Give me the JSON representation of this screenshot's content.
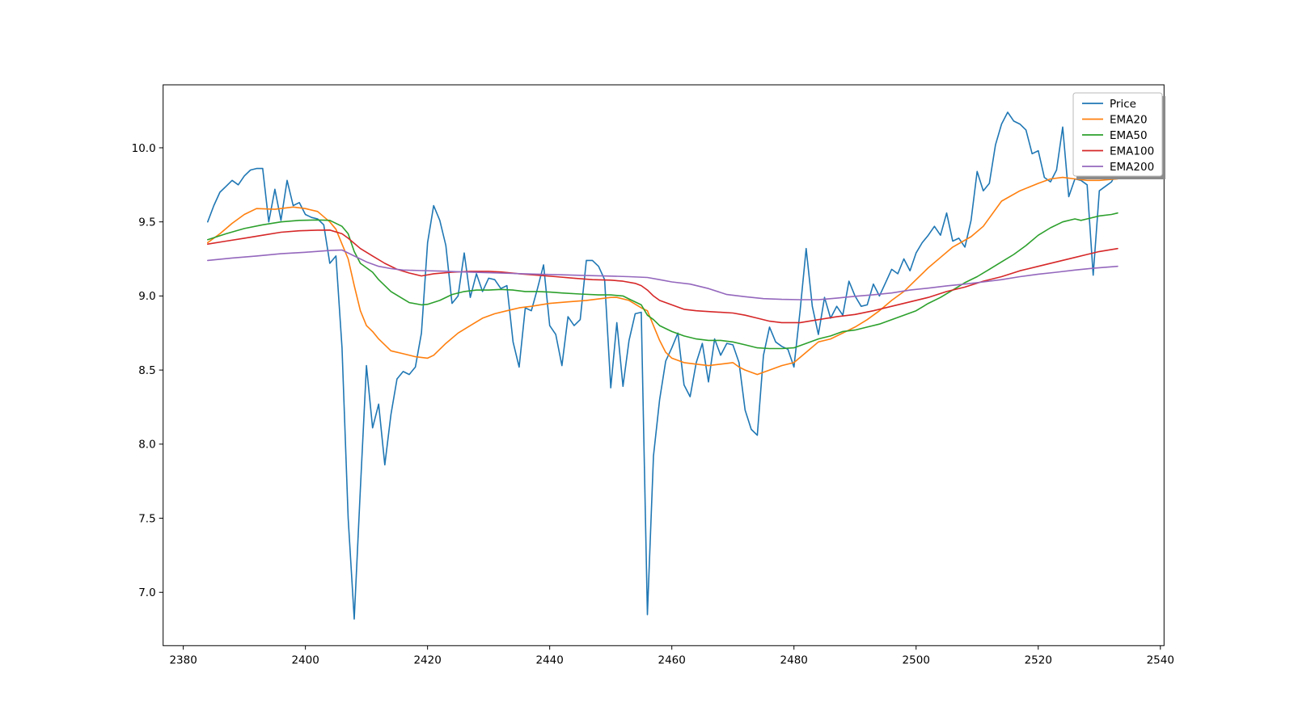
{
  "figure": {
    "background": "#ffffff",
    "axes_edge_color": "#000000",
    "tick_color": "#000000"
  },
  "chart_data": {
    "type": "line",
    "title": "",
    "xlabel": "",
    "ylabel": "",
    "grid": false,
    "xlim": [
      2376.7,
      2540.6
    ],
    "ylim": [
      6.64,
      10.425
    ],
    "xticks": [
      2380,
      2400,
      2420,
      2440,
      2460,
      2480,
      2500,
      2520,
      2540
    ],
    "yticks": [
      7.0,
      7.5,
      8.0,
      8.5,
      9.0,
      9.5,
      10.0
    ],
    "legend": {
      "position": "upper right",
      "entries": [
        "Price",
        "EMA20",
        "EMA50",
        "EMA100",
        "EMA200"
      ]
    },
    "series": [
      {
        "name": "Price",
        "color": "#1f77b4",
        "x_start": 2384,
        "x_step": 1,
        "values": [
          9.5,
          9.61,
          9.7,
          9.74,
          9.78,
          9.75,
          9.81,
          9.85,
          9.86,
          9.86,
          9.5,
          9.72,
          9.51,
          9.78,
          9.61,
          9.63,
          9.55,
          9.53,
          9.52,
          9.48,
          9.22,
          9.27,
          8.65,
          7.5,
          6.82,
          7.7,
          8.53,
          8.11,
          8.27,
          7.86,
          8.2,
          8.44,
          8.49,
          8.47,
          8.52,
          8.75,
          9.36,
          9.61,
          9.51,
          9.34,
          8.95,
          9.0,
          9.29,
          8.99,
          9.15,
          9.03,
          9.12,
          9.11,
          9.05,
          9.07,
          8.69,
          8.52,
          8.92,
          8.9,
          9.05,
          9.21,
          8.8,
          8.74,
          8.53,
          8.86,
          8.8,
          8.84,
          9.24,
          9.24,
          9.2,
          9.11,
          8.38,
          8.82,
          8.39,
          8.7,
          8.88,
          8.89,
          6.85,
          7.92,
          8.3,
          8.56,
          8.65,
          8.75,
          8.4,
          8.32,
          8.55,
          8.68,
          8.42,
          8.71,
          8.6,
          8.68,
          8.67,
          8.55,
          8.23,
          8.1,
          8.06,
          8.6,
          8.79,
          8.69,
          8.66,
          8.64,
          8.52,
          8.9,
          9.32,
          8.93,
          8.74,
          8.99,
          8.85,
          8.93,
          8.87,
          9.1,
          9.0,
          8.93,
          8.94,
          9.08,
          9.0,
          9.09,
          9.18,
          9.15,
          9.25,
          9.17,
          9.29,
          9.36,
          9.41,
          9.47,
          9.41,
          9.56,
          9.37,
          9.39,
          9.33,
          9.51,
          9.84,
          9.71,
          9.76,
          10.02,
          10.16,
          10.24,
          10.18,
          10.16,
          10.12,
          9.96,
          9.98,
          9.8,
          9.77,
          9.85,
          10.14,
          9.67,
          9.79,
          9.78,
          9.75,
          9.14,
          9.71,
          9.74,
          9.77,
          9.85
        ]
      },
      {
        "name": "EMA20",
        "color": "#ff7f0e",
        "x": [
          2384,
          2386,
          2388,
          2390,
          2392,
          2395,
          2398,
          2400,
          2402,
          2404,
          2405,
          2406,
          2407,
          2408,
          2409,
          2410,
          2411,
          2412,
          2414,
          2416,
          2418,
          2420,
          2421,
          2423,
          2425,
          2427,
          2429,
          2431,
          2433,
          2435,
          2437,
          2440,
          2443,
          2446,
          2448,
          2450,
          2451,
          2453,
          2455,
          2456,
          2457,
          2458,
          2459,
          2460,
          2462,
          2464,
          2466,
          2468,
          2470,
          2471,
          2472,
          2474,
          2476,
          2478,
          2480,
          2482,
          2484,
          2486,
          2488,
          2490,
          2492,
          2494,
          2496,
          2498,
          2500,
          2502,
          2504,
          2506,
          2509,
          2511,
          2514,
          2517,
          2520,
          2522,
          2524,
          2526,
          2528,
          2530,
          2533
        ],
        "values": [
          9.36,
          9.42,
          9.49,
          9.55,
          9.59,
          9.585,
          9.6,
          9.59,
          9.57,
          9.5,
          9.45,
          9.35,
          9.25,
          9.07,
          8.9,
          8.8,
          8.76,
          8.71,
          8.63,
          8.61,
          8.59,
          8.58,
          8.6,
          8.68,
          8.75,
          8.8,
          8.85,
          8.88,
          8.9,
          8.92,
          8.93,
          8.95,
          8.96,
          8.97,
          8.98,
          8.99,
          8.99,
          8.97,
          8.92,
          8.9,
          8.8,
          8.7,
          8.62,
          8.58,
          8.55,
          8.54,
          8.53,
          8.54,
          8.55,
          8.52,
          8.5,
          8.47,
          8.5,
          8.53,
          8.55,
          8.62,
          8.69,
          8.71,
          8.75,
          8.79,
          8.84,
          8.9,
          8.97,
          9.03,
          9.11,
          9.19,
          9.26,
          9.33,
          9.4,
          9.47,
          9.64,
          9.71,
          9.76,
          9.79,
          9.8,
          9.79,
          9.78,
          9.78,
          9.79
        ]
      },
      {
        "name": "EMA50",
        "color": "#2ca02c",
        "x": [
          2384,
          2387,
          2390,
          2393,
          2396,
          2399,
          2402,
          2404,
          2406,
          2407,
          2408,
          2409,
          2411,
          2412,
          2414,
          2416,
          2417,
          2419,
          2420,
          2422,
          2424,
          2426,
          2428,
          2430,
          2432,
          2434,
          2436,
          2438,
          2440,
          2442,
          2445,
          2448,
          2450,
          2452,
          2453,
          2455,
          2456,
          2457,
          2458,
          2460,
          2462,
          2464,
          2466,
          2468,
          2470,
          2472,
          2474,
          2476,
          2478,
          2480,
          2482,
          2484,
          2486,
          2488,
          2490,
          2492,
          2494,
          2496,
          2498,
          2500,
          2502,
          2504,
          2506,
          2508,
          2510,
          2512,
          2514,
          2516,
          2518,
          2520,
          2522,
          2524,
          2526,
          2527,
          2528,
          2530,
          2532,
          2533
        ],
        "values": [
          9.38,
          9.42,
          9.455,
          9.48,
          9.5,
          9.51,
          9.513,
          9.51,
          9.47,
          9.42,
          9.3,
          9.22,
          9.16,
          9.11,
          9.03,
          8.98,
          8.955,
          8.94,
          8.944,
          8.97,
          9.01,
          9.03,
          9.04,
          9.04,
          9.044,
          9.04,
          9.03,
          9.03,
          9.026,
          9.02,
          9.013,
          9.007,
          9.007,
          9.0,
          8.98,
          8.94,
          8.87,
          8.84,
          8.8,
          8.76,
          8.73,
          8.71,
          8.7,
          8.7,
          8.69,
          8.67,
          8.65,
          8.645,
          8.645,
          8.65,
          8.68,
          8.71,
          8.73,
          8.76,
          8.77,
          8.79,
          8.81,
          8.84,
          8.87,
          8.9,
          8.95,
          8.99,
          9.04,
          9.09,
          9.13,
          9.18,
          9.23,
          9.28,
          9.34,
          9.41,
          9.46,
          9.5,
          9.52,
          9.51,
          9.52,
          9.54,
          9.55,
          9.56
        ]
      },
      {
        "name": "EMA100",
        "color": "#d62728",
        "x": [
          2384,
          2387,
          2390,
          2393,
          2396,
          2399,
          2402,
          2404,
          2406,
          2407,
          2409,
          2411,
          2413,
          2415,
          2417,
          2419,
          2421,
          2424,
          2427,
          2430,
          2432,
          2435,
          2438,
          2441,
          2444,
          2447,
          2450,
          2452,
          2454,
          2455,
          2456,
          2457,
          2458,
          2460,
          2462,
          2464,
          2466,
          2468,
          2470,
          2472,
          2474,
          2476,
          2478,
          2481,
          2484,
          2487,
          2490,
          2493,
          2496,
          2499,
          2502,
          2505,
          2508,
          2511,
          2514,
          2517,
          2520,
          2523,
          2526,
          2528,
          2530,
          2533
        ],
        "values": [
          9.35,
          9.37,
          9.39,
          9.41,
          9.43,
          9.44,
          9.444,
          9.445,
          9.42,
          9.39,
          9.32,
          9.27,
          9.22,
          9.18,
          9.155,
          9.135,
          9.15,
          9.16,
          9.166,
          9.166,
          9.162,
          9.15,
          9.14,
          9.13,
          9.12,
          9.11,
          9.107,
          9.1,
          9.085,
          9.07,
          9.04,
          9.0,
          8.97,
          8.94,
          8.91,
          8.9,
          8.895,
          8.89,
          8.885,
          8.87,
          8.85,
          8.83,
          8.82,
          8.82,
          8.84,
          8.86,
          8.875,
          8.9,
          8.93,
          8.96,
          8.99,
          9.03,
          9.06,
          9.1,
          9.13,
          9.17,
          9.2,
          9.23,
          9.26,
          9.28,
          9.3,
          9.32
        ]
      },
      {
        "name": "EMA200",
        "color": "#9467bd",
        "x": [
          2384,
          2388,
          2392,
          2396,
          2400,
          2404,
          2406,
          2408,
          2410,
          2412,
          2414,
          2416,
          2419,
          2422,
          2426,
          2430,
          2434,
          2438,
          2442,
          2446,
          2450,
          2453,
          2456,
          2458,
          2460,
          2463,
          2466,
          2469,
          2472,
          2475,
          2478,
          2481,
          2484,
          2487,
          2490,
          2493,
          2496,
          2499,
          2502,
          2505,
          2508,
          2511,
          2514,
          2517,
          2520,
          2523,
          2526,
          2529,
          2533
        ],
        "values": [
          9.24,
          9.256,
          9.27,
          9.285,
          9.295,
          9.307,
          9.31,
          9.27,
          9.23,
          9.2,
          9.185,
          9.175,
          9.171,
          9.168,
          9.162,
          9.157,
          9.152,
          9.147,
          9.143,
          9.138,
          9.134,
          9.13,
          9.125,
          9.11,
          9.095,
          9.08,
          9.05,
          9.01,
          8.995,
          8.982,
          8.977,
          8.975,
          8.975,
          8.985,
          8.998,
          9.008,
          9.02,
          9.04,
          9.053,
          9.068,
          9.08,
          9.095,
          9.11,
          9.13,
          9.147,
          9.16,
          9.175,
          9.187,
          9.2
        ]
      }
    ]
  }
}
